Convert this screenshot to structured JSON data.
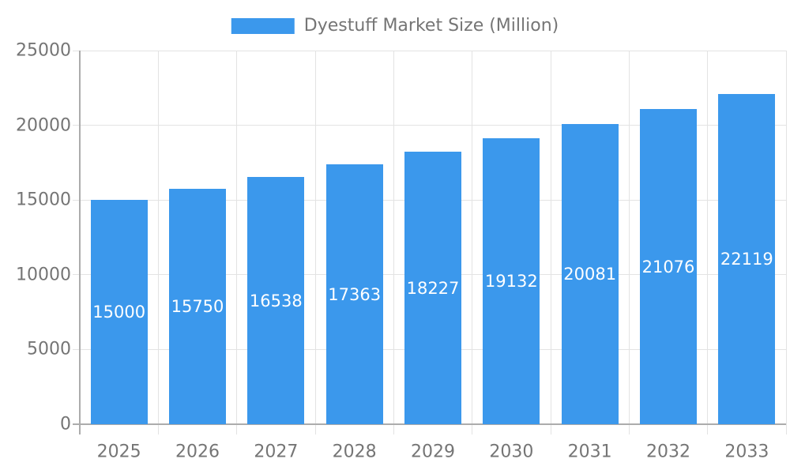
{
  "chart_data": {
    "type": "bar",
    "title": "Dyestuff Market Size (Million)",
    "categories": [
      "2025",
      "2026",
      "2027",
      "2028",
      "2029",
      "2030",
      "2031",
      "2032",
      "2033"
    ],
    "values": [
      15000,
      15750,
      16538,
      17363,
      18227,
      19132,
      20081,
      21076,
      22119
    ],
    "xlabel": "",
    "ylabel": "",
    "ylim": [
      0,
      25000
    ],
    "yticks": [
      0,
      5000,
      10000,
      15000,
      20000,
      25000
    ],
    "grid": true,
    "legend_position": "top",
    "bar_color": "#3B98EC",
    "data_label_color": "#FFFFFF",
    "axis_text_color": "#757575",
    "grid_color": "#E3E3E3",
    "axis_line_color": "#ACACAC"
  }
}
